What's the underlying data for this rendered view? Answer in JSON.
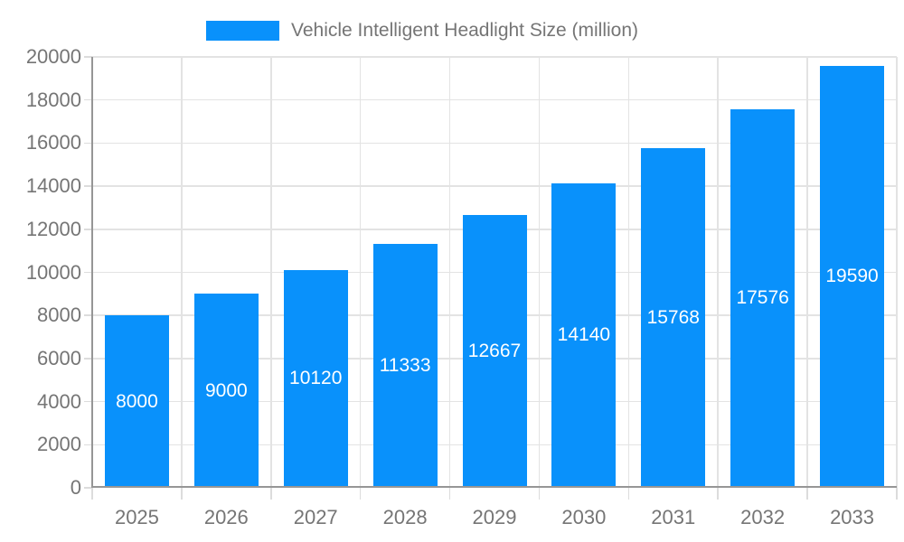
{
  "legend": {
    "label": "Vehicle Intelligent Headlight Size (million)"
  },
  "chart_data": {
    "type": "bar",
    "title": "Vehicle Intelligent Headlight Size (million)",
    "categories": [
      "2025",
      "2026",
      "2027",
      "2028",
      "2029",
      "2030",
      "2031",
      "2032",
      "2033"
    ],
    "series": [
      {
        "name": "Vehicle Intelligent Headlight Size (million)",
        "values": [
          8000,
          9000,
          10120,
          11333,
          12667,
          14140,
          15768,
          17576,
          19590
        ]
      }
    ],
    "value_labels": [
      "8000",
      "9000",
      "10120",
      "11333",
      "12667",
      "14140",
      "15768",
      "17576",
      "19590"
    ],
    "xlabel": "",
    "ylabel": "",
    "ylim": [
      0,
      20000
    ],
    "yticks": [
      0,
      2000,
      4000,
      6000,
      8000,
      10000,
      12000,
      14000,
      16000,
      18000,
      20000
    ],
    "grid": true,
    "legend_position": "top-center",
    "colors": {
      "bar": "#0991FB",
      "grid": "#E3E3E3",
      "tick": "#DCDCDC",
      "axis": "#969696",
      "axis_label": "#757575",
      "value_label": "#FFFFFF",
      "background": "#FFFFFF"
    }
  }
}
